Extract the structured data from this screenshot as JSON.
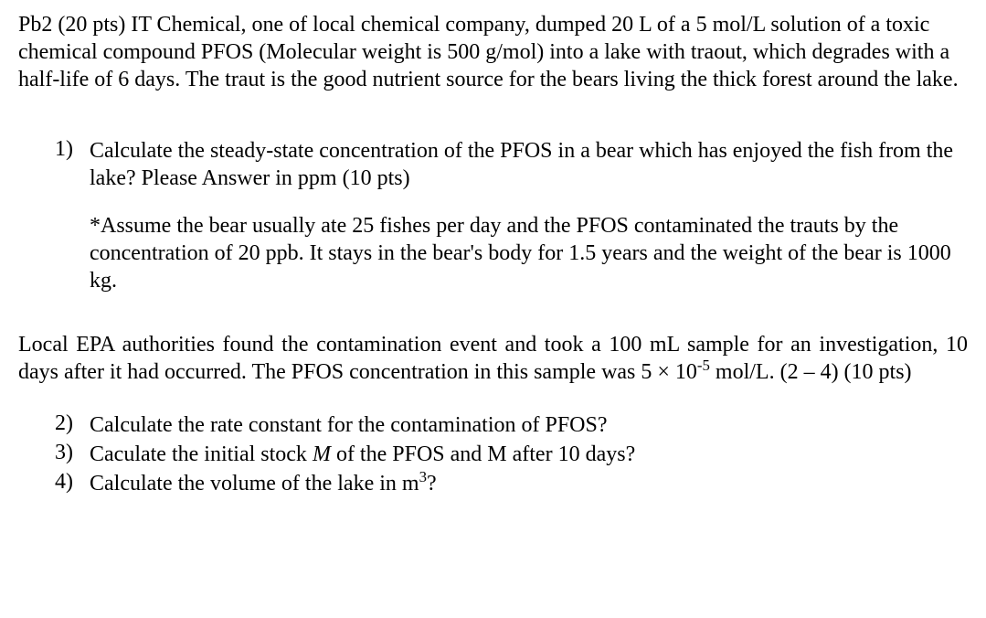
{
  "intro": "Pb2 (20 pts) IT Chemical, one of local chemical company, dumped 20 L of a 5 mol/L solution of a toxic chemical compound PFOS (Molecular weight is 500 g/mol) into a lake with traout, which degrades with a half-life of 6 days. The traut is the good nutrient source for the bears living the thick forest around the lake.",
  "q1": {
    "number": "1)",
    "text": "Calculate the steady-state concentration of the PFOS in a bear which has enjoyed the fish from the lake? Please Answer in ppm (10 pts)"
  },
  "assumption": "*Assume the bear usually ate 25 fishes per day and the PFOS contaminated the trauts by the concentration of 20 ppb. It stays in the bear's body for 1.5 years and the weight of the bear is 1000 kg.",
  "epa_text_part1": "Local EPA authorities found the contamination event and took a 100 mL sample for an investigation, 10 days after it had occurred. The PFOS concentration in this sample was 5 × 10",
  "epa_sup": "-5",
  "epa_text_part2": " mol/L. (2 – 4) (10 pts)",
  "q2": {
    "number": "2)",
    "text": "Calculate the rate constant for the contamination of PFOS?"
  },
  "q3": {
    "number": "3)",
    "text_pre": "Caculate the initial stock ",
    "text_italic": "M",
    "text_post": " of the PFOS and M after 10 days?"
  },
  "q4": {
    "number": "4)",
    "text_pre": "Calculate the volume of the lake in m",
    "sup": "3",
    "text_post": "?"
  }
}
